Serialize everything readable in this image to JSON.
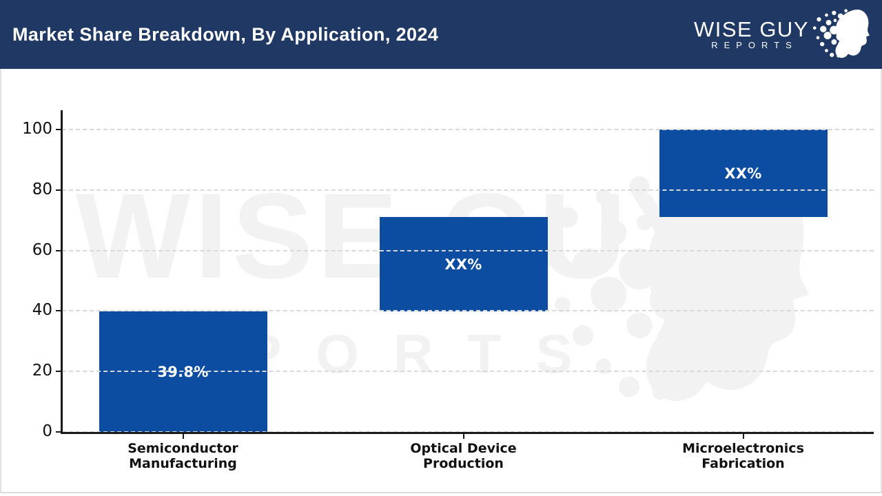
{
  "header": {
    "title": "Market Share Breakdown, By Application, 2024",
    "logo": {
      "line1": "WISE GUY",
      "line2": "REPORTS"
    }
  },
  "watermark": {
    "line1": "WISE GUY",
    "line2": "REPORTS"
  },
  "colors": {
    "header_bg": "#1f3864",
    "bar_fill": "#0c4da2",
    "bar_label": "#ffffff",
    "gridline": "#d9d9d9",
    "axis": "#1a1a1a",
    "watermark": "#f2f2f3"
  },
  "chart_data": {
    "type": "bar",
    "subtype": "stacked-waterfall",
    "title": "Market Share Breakdown, By Application, 2024",
    "xlabel": "",
    "ylabel": "",
    "ylim": [
      0,
      100
    ],
    "yticks": [
      0,
      20,
      40,
      60,
      80,
      100
    ],
    "grid": "horizontal-dashed",
    "legend": "none",
    "categories": [
      "Semiconductor Manufacturing",
      "Optical Device Production",
      "Microelectronics Fabrication"
    ],
    "segments": [
      {
        "category_line1": "Semiconductor",
        "category_line2": "Manufacturing",
        "start": 0,
        "end": 39.8,
        "label": "39.8%"
      },
      {
        "category_line1": "Optical Device",
        "category_line2": "Production",
        "start": 39.8,
        "end": 71,
        "label": "XX%"
      },
      {
        "category_line1": "Microelectronics",
        "category_line2": "Fabrication",
        "start": 71,
        "end": 100,
        "label": "XX%"
      }
    ]
  }
}
